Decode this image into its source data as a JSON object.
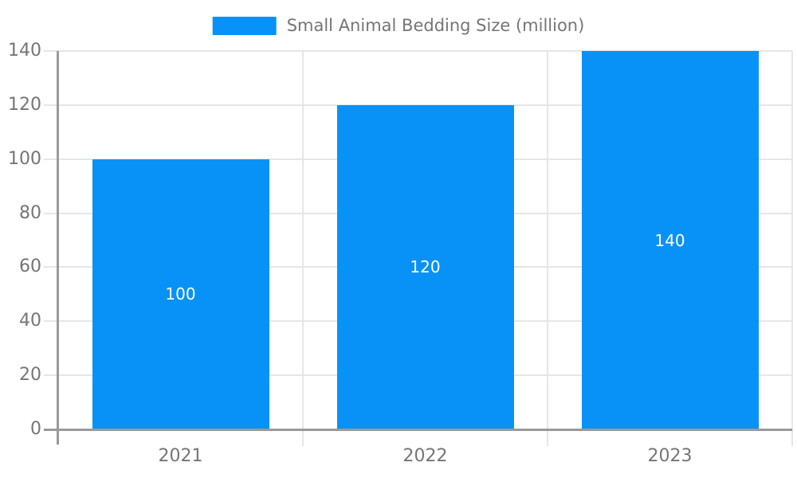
{
  "chart_data": {
    "type": "bar",
    "title": "Small Animal Bedding Size (million)",
    "legend": [
      "Small Animal Bedding Size (million)"
    ],
    "legend_position": "top",
    "categories": [
      "2021",
      "2022",
      "2023"
    ],
    "values": [
      100,
      120,
      140
    ],
    "data_labels": [
      "100",
      "120",
      "140"
    ],
    "xlabel": "",
    "ylabel": "",
    "ylim": [
      0,
      140
    ],
    "yticks": [
      0,
      20,
      40,
      60,
      80,
      100,
      120,
      140
    ],
    "grid": true,
    "colors": {
      "bar": "#0892f8",
      "bar_label": "#ffffff",
      "axis_text": "#757575",
      "axis_line": "#9a9a9a",
      "gridline": "#e6e6e6",
      "background": "#ffffff"
    }
  }
}
